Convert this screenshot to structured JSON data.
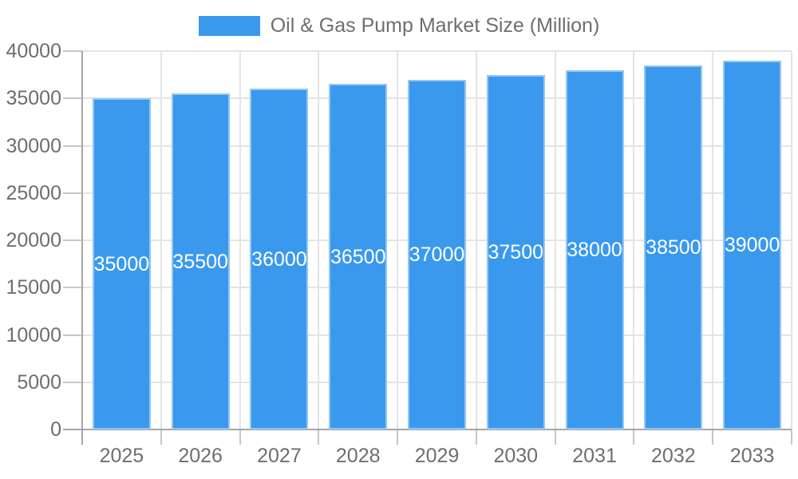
{
  "legend": {
    "label": "Oil & Gas Pump Market Size (Million)"
  },
  "chart_data": {
    "type": "bar",
    "title": "Oil & Gas Pump Market Size (Million)",
    "legend_entries": [
      "Oil & Gas Pump Market Size (Million)"
    ],
    "legend_position": "top",
    "categories": [
      "2025",
      "2026",
      "2027",
      "2028",
      "2029",
      "2030",
      "2031",
      "2032",
      "2033"
    ],
    "values": [
      35000,
      35500,
      36000,
      36500,
      37000,
      37500,
      38000,
      38500,
      39000
    ],
    "bar_value_labels": [
      "35000",
      "35500",
      "36000",
      "36500",
      "37000",
      "37500",
      "38000",
      "38500",
      "39000"
    ],
    "xlabel": "",
    "ylabel": "",
    "ylim": [
      0,
      40000
    ],
    "ytick_step": 5000,
    "ytick_labels": [
      "0",
      "5000",
      "10000",
      "15000",
      "20000",
      "25000",
      "30000",
      "35000",
      "40000"
    ],
    "grid": true,
    "colors": {
      "bar": "#3b99ed",
      "bar_label": "#ffffff",
      "axis_text": "#6e6e6e",
      "gridline": "#e4e4e4",
      "axis_line": "#a6a6a6",
      "tick": "#c6c6c6",
      "background": "#ffffff"
    }
  }
}
